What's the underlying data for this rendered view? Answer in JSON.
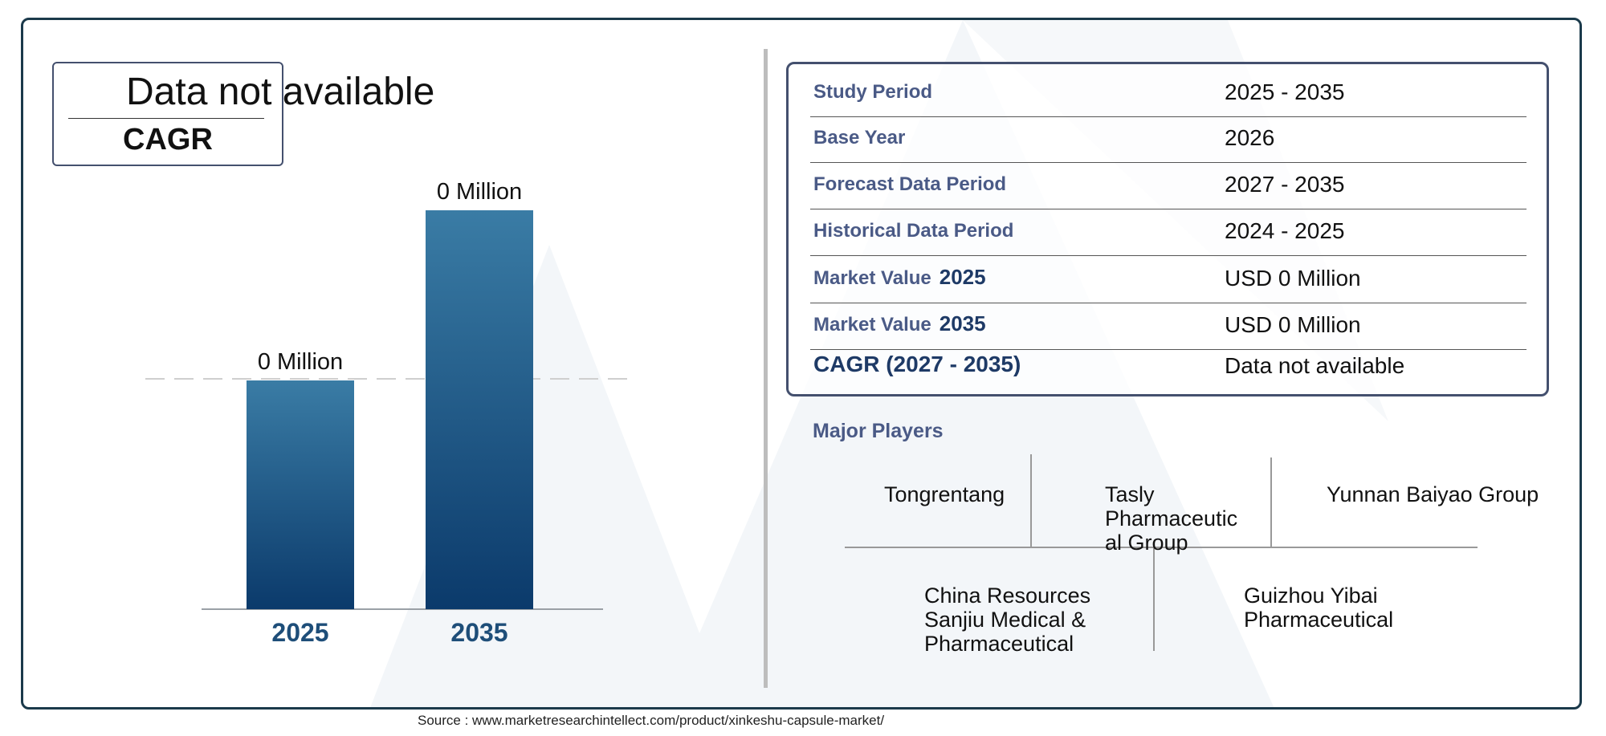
{
  "cagr_card": {
    "value": "Data not available",
    "label": "CAGR"
  },
  "chart_data": {
    "type": "bar",
    "categories": [
      "2025",
      "2035"
    ],
    "values": [
      0,
      0
    ],
    "data_labels": [
      "0 Million",
      "0 Million"
    ],
    "title": "",
    "xlabel": "",
    "ylabel": "",
    "colors": {
      "bar_top": "#3a7ca5",
      "bar_bottom": "#0b3a6b",
      "axis_label": "#1e4e79"
    }
  },
  "stats_table": [
    {
      "label": "Study Period",
      "year": "",
      "value": "2025 - 2035"
    },
    {
      "label": "Base Year",
      "year": "",
      "value": "2026"
    },
    {
      "label": "Forecast Data Period",
      "year": "",
      "value": "2027 - 2035"
    },
    {
      "label": "Historical Data Period",
      "year": "",
      "value": "2024 - 2025"
    },
    {
      "label": "Market Value",
      "year": "2025",
      "value": "USD 0 Million"
    },
    {
      "label": "Market Value",
      "year": "2035",
      "value": "USD 0 Million"
    },
    {
      "label": "CAGR (2027 - 2035)",
      "year": "",
      "value": "Data not available"
    }
  ],
  "major_players": {
    "title": "Major Players",
    "players": [
      "Tongrentang",
      "Tasly Pharmaceutic al Group",
      "Yunnan Baiyao Group",
      "China Resources Sanjiu Medical & Pharmaceutical",
      "Guizhou Yibai Pharmaceutical"
    ]
  },
  "source": "Source : www.marketresearchintellect.com/product/xinkeshu-capsule-market/",
  "colors": {
    "frame": "#1b3a4b",
    "label_blue": "#4a5a86",
    "watermark": "#f2f5f8"
  }
}
